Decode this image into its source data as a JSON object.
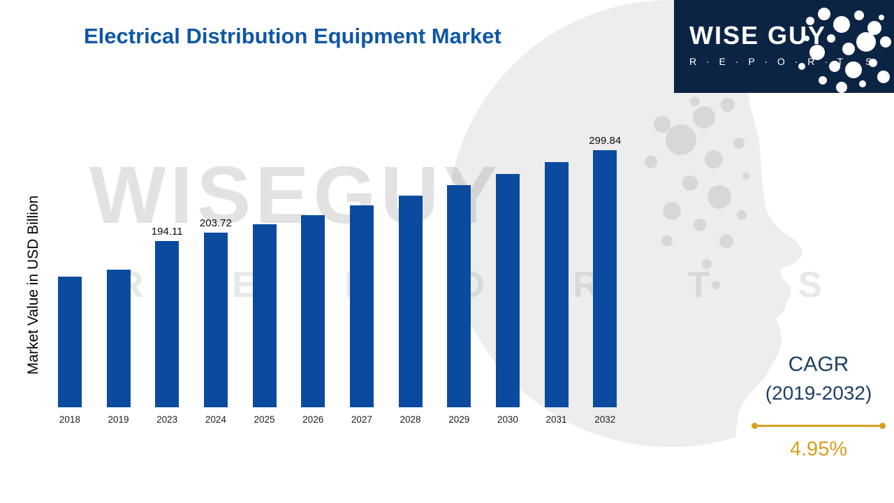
{
  "page": {
    "title": "Electrical Distribution Equipment Market"
  },
  "logo": {
    "line1": "WISE GUY",
    "line2": "R · E · P · O · R · T · S"
  },
  "watermark": {
    "line1": "WISEGUY",
    "line2": "R E P O R T S"
  },
  "axis": {
    "ylabel": "Market Value in USD Billion"
  },
  "cagr": {
    "label": "CAGR",
    "range": "(2019-2032)",
    "value": "4.95%"
  },
  "colors": {
    "bar": "#0b4b9f",
    "title_blue": "#0e57a6",
    "navy": "#0c2444",
    "gold": "#d5a021",
    "cagr_text": "#1e4066"
  },
  "chart_data": {
    "type": "bar",
    "title": "Electrical Distribution Equipment Market",
    "ylabel": "Market Value in USD Billion",
    "xlabel": "",
    "categories": [
      "2018",
      "2019",
      "2023",
      "2024",
      "2025",
      "2026",
      "2027",
      "2028",
      "2029",
      "2030",
      "2031",
      "2032"
    ],
    "values": [
      152.5,
      160.2,
      194.11,
      203.72,
      213.8,
      224.4,
      235.5,
      247.2,
      259.4,
      272.2,
      285.7,
      299.84
    ],
    "value_labels": [
      "",
      "",
      "194.11",
      "203.72",
      "",
      "",
      "",
      "",
      "",
      "",
      "",
      "299.84"
    ],
    "ylim": [
      0,
      320
    ],
    "grid": false,
    "legend": false
  }
}
